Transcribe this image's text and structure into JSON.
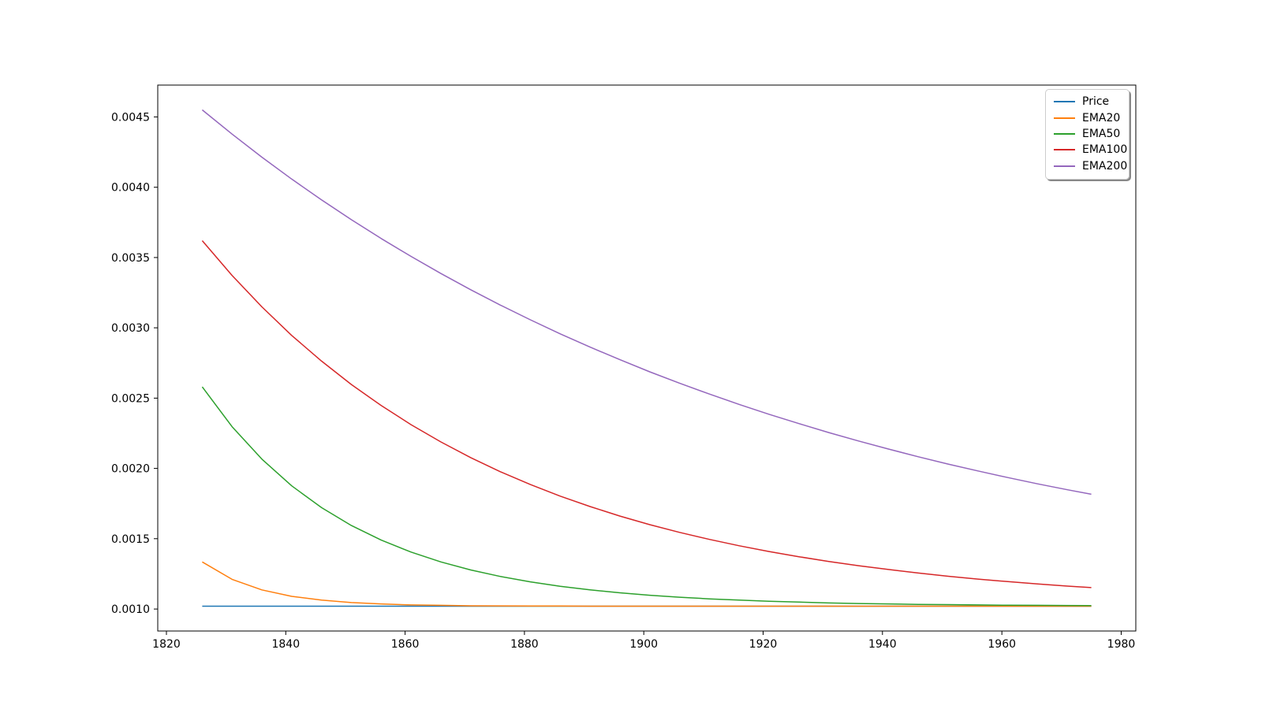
{
  "figure": {
    "background": "#ffffff",
    "axes_background": "#ffffff",
    "spine_color": "#000000",
    "tick_color": "#000000",
    "tick_label_color": "#000000"
  },
  "chart_data": {
    "type": "line",
    "grid": false,
    "legend_position": "upper-right",
    "xlim": [
      1818.55,
      1982.45
    ],
    "ylim": [
      0.0008435,
      0.0047265
    ],
    "xticks": [
      1820,
      1840,
      1860,
      1880,
      1900,
      1920,
      1940,
      1960,
      1980
    ],
    "xtick_labels": [
      "1820",
      "1840",
      "1860",
      "1880",
      "1900",
      "1920",
      "1940",
      "1960",
      "1980"
    ],
    "yticks": [
      0.001,
      0.0015,
      0.002,
      0.0025,
      0.003,
      0.0035,
      0.004,
      0.0045
    ],
    "ytick_labels": [
      "0.0010",
      "0.0015",
      "0.0020",
      "0.0025",
      "0.0030",
      "0.0035",
      "0.0040",
      "0.0045"
    ],
    "x": [
      1826,
      1831,
      1836,
      1841,
      1846,
      1851,
      1856,
      1861,
      1866,
      1871,
      1876,
      1881,
      1886,
      1891,
      1896,
      1901,
      1906,
      1911,
      1916,
      1921,
      1926,
      1931,
      1936,
      1941,
      1946,
      1951,
      1956,
      1961,
      1966,
      1971,
      1975
    ],
    "series": [
      {
        "name": "Price",
        "color": "#1f77b4",
        "values": [
          0.00102,
          0.00102,
          0.00102,
          0.00102,
          0.00102,
          0.00102,
          0.00102,
          0.00102,
          0.00102,
          0.00102,
          0.00102,
          0.00102,
          0.00102,
          0.00102,
          0.00102,
          0.00102,
          0.00102,
          0.00102,
          0.00102,
          0.00102,
          0.00102,
          0.00102,
          0.00102,
          0.00102,
          0.00102,
          0.00102,
          0.00102,
          0.00102,
          0.00102,
          0.00102,
          0.00102
        ]
      },
      {
        "name": "EMA20",
        "color": "#ff7f0e",
        "values": [
          0.001335,
          0.001211,
          0.001136,
          0.00109,
          0.001063,
          0.001046,
          0.001036,
          0.001029,
          0.001026,
          0.001023,
          0.001022,
          0.001021,
          0.001021,
          0.00102,
          0.00102,
          0.00102,
          0.00102,
          0.00102,
          0.00102,
          0.00102,
          0.00102,
          0.00102,
          0.00102,
          0.00102,
          0.00102,
          0.00102,
          0.00102,
          0.00102,
          0.00102,
          0.00102,
          0.00102
        ]
      },
      {
        "name": "EMA50",
        "color": "#2ca02c",
        "values": [
          0.00258,
          0.002297,
          0.002066,
          0.001876,
          0.001721,
          0.001594,
          0.00149,
          0.001405,
          0.001335,
          0.001278,
          0.001231,
          0.001193,
          0.001161,
          0.001136,
          0.001115,
          0.001098,
          0.001084,
          0.001072,
          0.001063,
          0.001055,
          0.001049,
          0.001043,
          0.001039,
          0.001036,
          0.001033,
          0.001031,
          0.001029,
          0.001027,
          0.001026,
          0.001025,
          0.001024
        ]
      },
      {
        "name": "EMA100",
        "color": "#d62728",
        "values": [
          0.00362,
          0.003373,
          0.003149,
          0.002946,
          0.002763,
          0.002597,
          0.002447,
          0.002311,
          0.002188,
          0.002077,
          0.001976,
          0.001885,
          0.001803,
          0.001729,
          0.001661,
          0.0016,
          0.001545,
          0.001495,
          0.00145,
          0.001409,
          0.001372,
          0.001338,
          0.001308,
          0.001281,
          0.001256,
          0.001233,
          0.001213,
          0.001195,
          0.001178,
          0.001163,
          0.001152
        ]
      },
      {
        "name": "EMA200",
        "color": "#9467bd",
        "values": [
          0.00455,
          0.004378,
          0.004214,
          0.004058,
          0.00391,
          0.003769,
          0.003635,
          0.003508,
          0.003386,
          0.003271,
          0.003161,
          0.003057,
          0.002957,
          0.002863,
          0.002773,
          0.002687,
          0.002606,
          0.002529,
          0.002455,
          0.002385,
          0.002319,
          0.002255,
          0.002195,
          0.002138,
          0.002083,
          0.002031,
          0.001982,
          0.001935,
          0.00189,
          0.001848,
          0.001816
        ]
      }
    ]
  }
}
